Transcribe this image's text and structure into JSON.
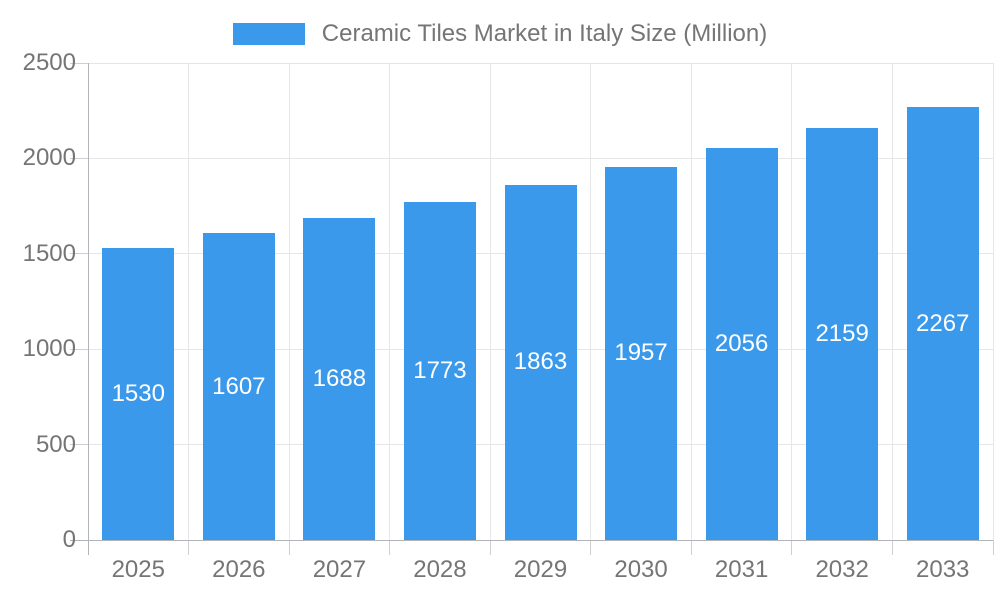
{
  "chart_data": {
    "type": "bar",
    "title": "Ceramic Tiles Market in Italy Size (Million)",
    "categories": [
      "2025",
      "2026",
      "2027",
      "2028",
      "2029",
      "2030",
      "2031",
      "2032",
      "2033"
    ],
    "values": [
      1530,
      1607,
      1688,
      1773,
      1863,
      1957,
      2056,
      2159,
      2267
    ],
    "xlabel": "",
    "ylabel": "",
    "ylim": [
      0,
      2500
    ],
    "ytick_step": 500,
    "yticks": [
      0,
      500,
      1000,
      1500,
      2000,
      2500
    ],
    "grid": true,
    "legend_position": "top",
    "value_labels_placement": "inside-center",
    "colors": {
      "bar": "#3b99ec",
      "bar_label_text": "#ffffff",
      "axis_text": "#757575",
      "grid_line": "#e6e6e6",
      "axis_line": "#b0b3b8",
      "tick_line": "#cfcfcf",
      "background": "#ffffff"
    }
  }
}
